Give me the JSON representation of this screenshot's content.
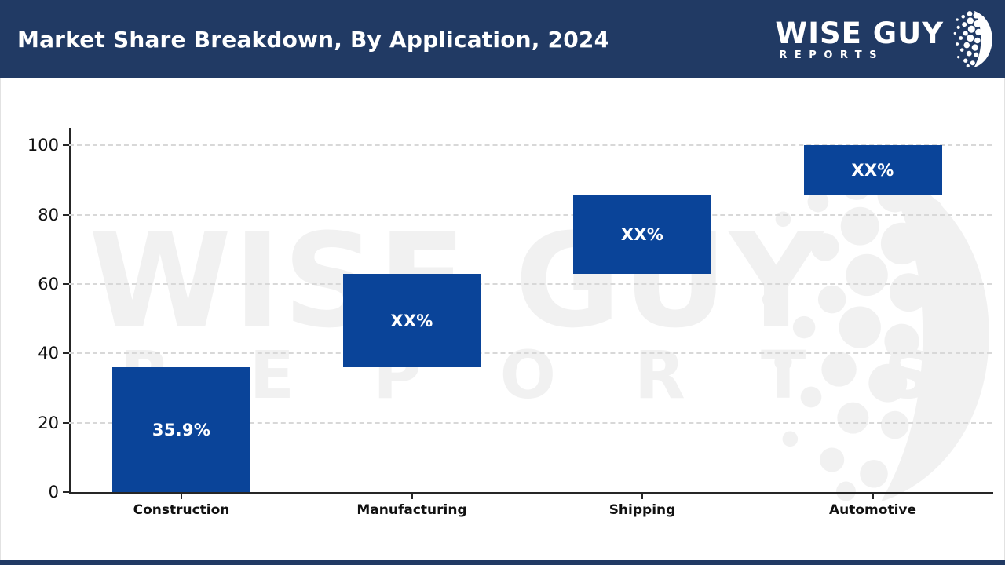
{
  "header": {
    "title": "Market Share Breakdown, By Application, 2024",
    "logo": {
      "brand": "WISE GUY",
      "subtitle": "REPORTS"
    }
  },
  "watermark": {
    "line1": "WISE GUY",
    "line2": "REPORTS"
  },
  "chart_data": {
    "type": "bar",
    "subtype": "waterfall",
    "title": "Market Share Breakdown, By Application, 2024",
    "categories": [
      "Construction",
      "Manufacturing",
      "Shipping",
      "Automotive"
    ],
    "series": [
      {
        "name": "Market share by application (%)",
        "segments": [
          {
            "category": "Construction",
            "start": 0,
            "end": 35.9,
            "label": "35.9%"
          },
          {
            "category": "Manufacturing",
            "start": 35.9,
            "end": 63,
            "label": "XX%"
          },
          {
            "category": "Shipping",
            "start": 63,
            "end": 85.5,
            "label": "XX%"
          },
          {
            "category": "Automotive",
            "start": 85.5,
            "end": 100,
            "label": "XX%"
          }
        ]
      }
    ],
    "xlabel": "",
    "ylabel": "",
    "ylim": [
      0,
      100
    ],
    "yticks": [
      0,
      20,
      40,
      60,
      80,
      100
    ],
    "grid": "horizontal dashed",
    "legend": "none",
    "colors": {
      "bar": "#0a4499",
      "bar_label": "#ffffff",
      "axis": "#262626",
      "grid": "#d8d8d8",
      "header_bg": "#213a64",
      "watermark": "#f1f1f1"
    }
  }
}
